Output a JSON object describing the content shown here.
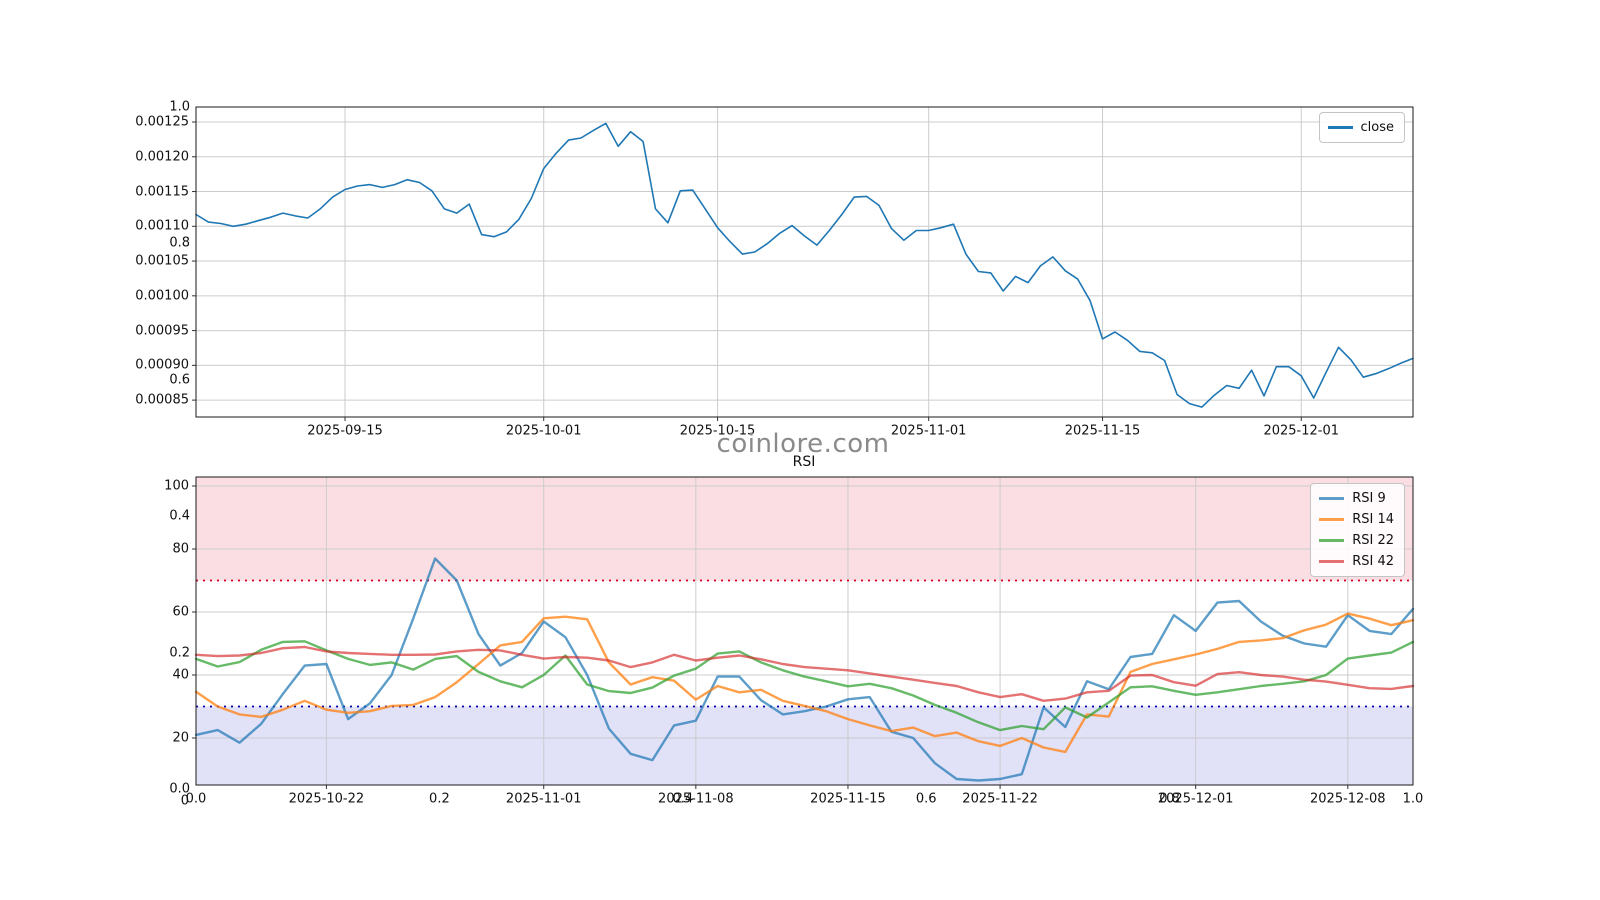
{
  "watermark": {
    "text": "coinlore.com",
    "color": "#8a8a8a"
  },
  "rsi_title": "RSI",
  "chart_data": [
    {
      "id": "price",
      "type": "line",
      "title": "",
      "xlabel": "",
      "ylabel": "",
      "grid": true,
      "legend_position": "top-right",
      "legend": [
        "close"
      ],
      "ylim": [
        0.0008257,
        0.0012716
      ],
      "yticks": [
        {
          "v": 0.00085,
          "label": "0.00085"
        },
        {
          "v": 0.0009,
          "label": "0.00090"
        },
        {
          "v": 0.00095,
          "label": "0.00095"
        },
        {
          "v": 0.001,
          "label": "0.00100"
        },
        {
          "v": 0.00105,
          "label": "0.00105"
        },
        {
          "v": 0.0011,
          "label": "0.00110"
        },
        {
          "v": 0.00115,
          "label": "0.00115"
        },
        {
          "v": 0.0012,
          "label": "0.00120"
        },
        {
          "v": 0.00125,
          "label": "0.00125"
        }
      ],
      "xticks": [
        {
          "i": 12,
          "label": "2025-09-15"
        },
        {
          "i": 28,
          "label": "2025-10-01"
        },
        {
          "i": 42,
          "label": "2025-10-15"
        },
        {
          "i": 59,
          "label": "2025-11-01"
        },
        {
          "i": 73,
          "label": "2025-11-15"
        },
        {
          "i": 89,
          "label": "2025-12-01"
        }
      ],
      "x_range_dates": [
        "2025-09-03",
        "2025-12-10"
      ],
      "series": [
        {
          "name": "close",
          "color": "#1f77b4",
          "opacity": 1,
          "width": 1.6,
          "values": [
            0.001117,
            0.001106,
            0.001104,
            0.0011,
            0.001103,
            0.001108,
            0.001113,
            0.001119,
            0.001115,
            0.001112,
            0.001125,
            0.001142,
            0.001153,
            0.001158,
            0.00116,
            0.001156,
            0.00116,
            0.001167,
            0.001163,
            0.001151,
            0.001125,
            0.001119,
            0.001132,
            0.001088,
            0.001085,
            0.001092,
            0.00111,
            0.00114,
            0.001183,
            0.001205,
            0.001224,
            0.001227,
            0.001238,
            0.001248,
            0.001215,
            0.001236,
            0.001222,
            0.001125,
            0.001105,
            0.001151,
            0.001152,
            0.001125,
            0.001098,
            0.001078,
            0.00106,
            0.001063,
            0.001075,
            0.00109,
            0.001101,
            0.001086,
            0.001073,
            0.001094,
            0.001117,
            0.001142,
            0.001143,
            0.00113,
            0.001097,
            0.00108,
            0.001094,
            0.001094,
            0.001098,
            0.001103,
            0.00106,
            0.001035,
            0.001033,
            0.001007,
            0.001028,
            0.001019,
            0.001043,
            0.001056,
            0.001036,
            0.001024,
            0.000993,
            0.000938,
            0.000948,
            0.000936,
            0.00092,
            0.000918,
            0.000907,
            0.000858,
            0.000845,
            0.00084,
            0.000857,
            0.000871,
            0.000867,
            0.000893,
            0.000856,
            0.000898,
            0.000898,
            0.000885,
            0.000853,
            0.00089,
            0.000926,
            0.000908,
            0.000883,
            0.000888,
            0.000895,
            0.000903,
            0.00091
          ]
        }
      ]
    },
    {
      "id": "rsi",
      "type": "line",
      "title": "RSI",
      "xlabel": "",
      "ylabel": "",
      "grid": true,
      "legend_position": "top-right",
      "legend": [
        "RSI 9",
        "RSI 14",
        "RSI 22",
        "RSI 42"
      ],
      "ylim": [
        5.08,
        102.86
      ],
      "yticks": [
        {
          "v": 0,
          "label": "0"
        },
        {
          "v": 20,
          "label": "20"
        },
        {
          "v": 40,
          "label": "40"
        },
        {
          "v": 60,
          "label": "60"
        },
        {
          "v": 80,
          "label": "80"
        },
        {
          "v": 100,
          "label": "100"
        }
      ],
      "xticks": [
        {
          "i": 6,
          "label": "2025-10-22"
        },
        {
          "i": 16,
          "label": "2025-11-01"
        },
        {
          "i": 23,
          "label": "2025-11-08"
        },
        {
          "i": 30,
          "label": "2025-11-15"
        },
        {
          "i": 37,
          "label": "2025-11-22"
        },
        {
          "i": 46,
          "label": "2025-12-01"
        },
        {
          "i": 53,
          "label": "2025-12-08"
        }
      ],
      "x_range_dates": [
        "2025-10-16",
        "2025-12-11"
      ],
      "bands": [
        {
          "from": 70,
          "to": 102.86,
          "color": "#fbdee3",
          "meaning": "overbought"
        },
        {
          "from": 5.08,
          "to": 30,
          "color": "#e1e1f8",
          "meaning": "oversold"
        }
      ],
      "levels": [
        {
          "v": 70,
          "color": "#d40022",
          "style": "dotted"
        },
        {
          "v": 30,
          "color": "#0000a8",
          "style": "dotted"
        }
      ],
      "series": [
        {
          "name": "RSI 9",
          "color": "#1f77b4",
          "opacity": 0.72,
          "width": 2.4,
          "values": [
            21,
            22.5,
            18.5,
            24.5,
            34,
            43,
            43.5,
            26,
            31,
            40,
            58,
            77,
            70,
            53,
            43,
            47,
            57,
            52,
            40,
            23,
            15,
            13,
            24,
            25.5,
            39.5,
            39.5,
            32,
            27.5,
            28.5,
            30,
            32.3,
            33,
            22,
            20,
            12,
            7,
            6.5,
            7,
            8.5,
            29.7,
            23.5,
            38,
            35.5,
            45.7,
            46.7,
            59,
            54,
            63,
            63.5,
            57,
            52.5,
            50,
            49,
            59,
            54,
            53,
            61
          ]
        },
        {
          "name": "RSI 14",
          "color": "#ff7f0e",
          "opacity": 0.75,
          "width": 2.4,
          "values": [
            34.7,
            30,
            27.5,
            26.7,
            29,
            31.8,
            29,
            28,
            28.5,
            30.2,
            30.5,
            33,
            37.7,
            43.5,
            49.4,
            50.5,
            58,
            58.5,
            57.7,
            44,
            37,
            39.3,
            38.2,
            32.2,
            36.5,
            34.5,
            35.3,
            31.8,
            30.2,
            28.5,
            26,
            24,
            22.2,
            23.3,
            20.6,
            21.7,
            19,
            17.5,
            20,
            17,
            15.6,
            27.5,
            26.8,
            41,
            43.5,
            45,
            46.5,
            48.3,
            50.5,
            51,
            51.7,
            54.2,
            56,
            59.5,
            57.9,
            55.8,
            57.4
          ]
        },
        {
          "name": "RSI 22",
          "color": "#2ca02c",
          "opacity": 0.72,
          "width": 2.4,
          "values": [
            45.1,
            42.7,
            44.1,
            48,
            50.5,
            50.7,
            47.8,
            45.1,
            43.2,
            44,
            41.7,
            45.1,
            46,
            41,
            38,
            36.1,
            40,
            46.2,
            37,
            34.9,
            34.3,
            36,
            39.8,
            42,
            46.8,
            47.5,
            44,
            41.5,
            39.5,
            38,
            36.4,
            37.2,
            35.8,
            33.5,
            30.5,
            28,
            25,
            22.5,
            23.8,
            22.8,
            29.7,
            26.5,
            31.3,
            36.1,
            36.4,
            35,
            33.7,
            34.5,
            35.5,
            36.5,
            37.2,
            38,
            40,
            45.2,
            46.2,
            47.1,
            50.5
          ]
        },
        {
          "name": "RSI 42",
          "color": "#d62728",
          "opacity": 0.65,
          "width": 2.4,
          "values": [
            46.4,
            46,
            46.2,
            47,
            48.5,
            48.9,
            47.5,
            47,
            46.7,
            46.4,
            46.4,
            46.5,
            47.5,
            48,
            47.8,
            46.4,
            45.2,
            45.7,
            45.5,
            44.6,
            42.5,
            44,
            46.4,
            44.6,
            45.5,
            46.2,
            45,
            43.5,
            42.5,
            42,
            41.5,
            40.5,
            39.5,
            38.5,
            37.5,
            36.5,
            34.5,
            33,
            33.9,
            31.8,
            32.5,
            34.5,
            35,
            39.8,
            40,
            37.7,
            36.6,
            40.3,
            40.9,
            40,
            39.5,
            38.5,
            37.9,
            36.9,
            35.8,
            35.6,
            36.5
          ]
        }
      ]
    }
  ],
  "phantom_axis": {
    "left": [
      {
        "label": "1.0",
        "f": 1.0
      },
      {
        "label": "0.8",
        "f": 0.8
      },
      {
        "label": "0.6",
        "f": 0.6
      },
      {
        "label": "0.4",
        "f": 0.4
      },
      {
        "label": "0.2",
        "f": 0.2
      },
      {
        "label": "0.0",
        "f": 0.0
      }
    ],
    "bottom": [
      {
        "label": "0.0",
        "f": 0.0
      },
      {
        "label": "0.2",
        "f": 0.2
      },
      {
        "label": "0.4",
        "f": 0.4
      },
      {
        "label": "0.6",
        "f": 0.6
      },
      {
        "label": "0.8",
        "f": 0.8
      },
      {
        "label": "1.0",
        "f": 1.0
      }
    ]
  }
}
